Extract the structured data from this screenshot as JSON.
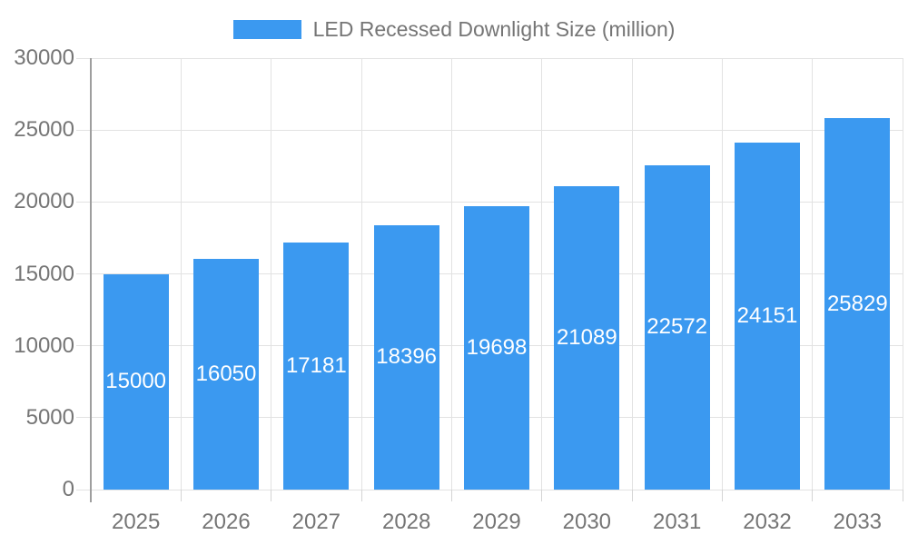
{
  "legend": {
    "label": "LED Recessed Downlight Size (million)",
    "swatch_color": "#3b99f0"
  },
  "colors": {
    "bar": "#3b99f0",
    "gridline": "#e2e2e2",
    "axis_line": "#9e9e9e",
    "tick": "#d4d4d4",
    "axis_text": "#757575",
    "value_label_text": "#ffffff",
    "background": "#ffffff"
  },
  "chart_data": {
    "type": "bar",
    "title": "LED Recessed Downlight Size (million)",
    "categories": [
      "2025",
      "2026",
      "2027",
      "2028",
      "2029",
      "2030",
      "2031",
      "2032",
      "2033"
    ],
    "series": [
      {
        "name": "LED Recessed Downlight Size (million)",
        "color": "#3b99f0",
        "values": [
          15000,
          16050,
          17181,
          18396,
          19698,
          21089,
          22572,
          24151,
          25829
        ]
      }
    ],
    "value_labels": [
      "15000",
      "16050",
      "17181",
      "18396",
      "19698",
      "21089",
      "22572",
      "24151",
      "25829"
    ],
    "value_label_position": "inside-center",
    "xlabel": "",
    "ylabel": "",
    "ylim": [
      0,
      30000
    ],
    "y_ticks": [
      0,
      5000,
      10000,
      15000,
      20000,
      25000,
      30000
    ],
    "y_tick_labels": [
      "0",
      "5000",
      "10000",
      "15000",
      "20000",
      "25000",
      "30000"
    ],
    "grid": true,
    "legend_position": "top"
  }
}
